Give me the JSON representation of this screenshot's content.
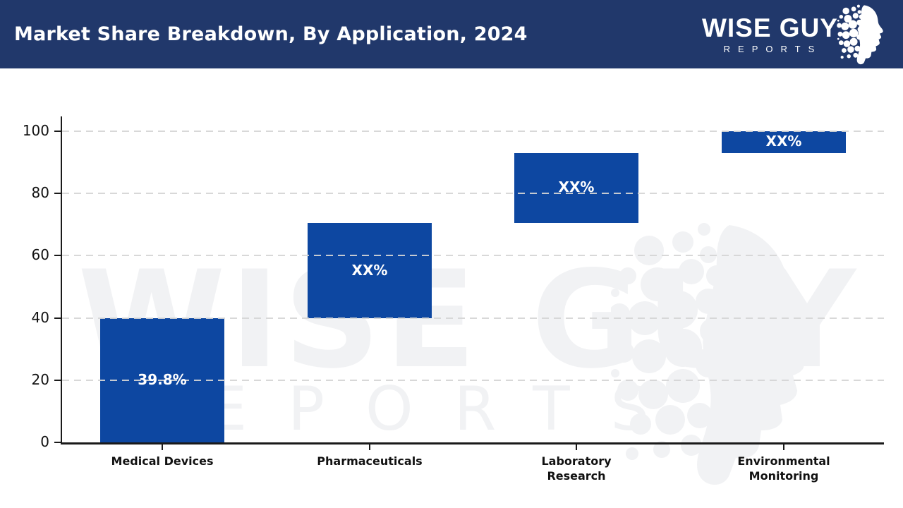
{
  "header": {
    "title": "Market Share Breakdown, By Application, 2024",
    "logo": {
      "line1": "WISE GUY",
      "line2": "REPORTS"
    }
  },
  "watermark": {
    "line1": "WISE GUY",
    "line2": "REPORTS"
  },
  "colors": {
    "header_bg": "#21386b",
    "bar": "#0d47a1",
    "bar_label_text": "#ffffff",
    "grid": "#d5d5d5",
    "axis": "#1a1a1a",
    "tick_text": "#111111",
    "watermark": "#f1f2f4"
  },
  "chart_data": {
    "type": "bar",
    "subtype": "waterfall",
    "title": "Market Share Breakdown, By Application, 2024",
    "xlabel": "",
    "ylabel": "",
    "ylim": [
      0,
      104
    ],
    "yticks": [
      0,
      20,
      40,
      60,
      80,
      100
    ],
    "grid": "horizontal-dashed",
    "legend": "none",
    "categories": [
      "Medical Devices",
      "Pharmaceuticals",
      "Laboratory Research",
      "Environmental Monitoring"
    ],
    "segments": [
      {
        "category": "Medical Devices",
        "start": 0.0,
        "end": 39.8,
        "value": 39.8,
        "label": "39.8%"
      },
      {
        "category": "Pharmaceuticals",
        "start": 39.8,
        "end": 70.6,
        "value": 30.8,
        "label": "XX%"
      },
      {
        "category": "Laboratory Research",
        "start": 70.6,
        "end": 93.0,
        "value": 22.4,
        "label": "XX%"
      },
      {
        "category": "Environmental Monitoring",
        "start": 93.0,
        "end": 100.0,
        "value": 7.0,
        "label": "XX%"
      }
    ]
  }
}
